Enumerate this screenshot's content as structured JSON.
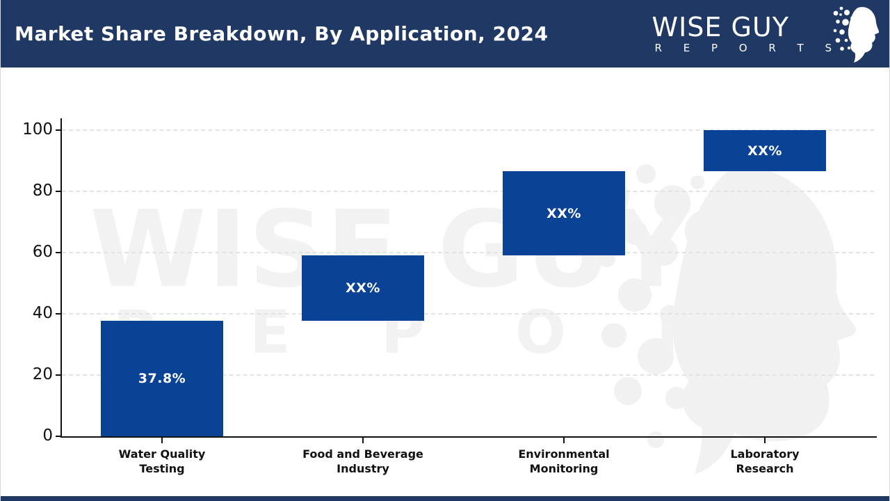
{
  "header": {
    "title": "Market Share Breakdown, By Application, 2024",
    "bg_color": "#203864",
    "logo": {
      "line1": "WISE GUY",
      "line2": "R E P O R T S"
    }
  },
  "watermark": {
    "line1": "WISE GUY",
    "line2": "R E P O R T S",
    "color": "#f2f2f2"
  },
  "chart_data": {
    "type": "bar",
    "subtype": "waterfall",
    "title": "Market Share Breakdown, By Application, 2024",
    "categories": [
      "Water Quality Testing",
      "Food and Beverage Industry",
      "Environmental Monitoring",
      "Laboratory Research"
    ],
    "segments": [
      {
        "category_lines": [
          "Water Quality",
          "Testing"
        ],
        "start": 0,
        "end": 37.8,
        "label": "37.8%"
      },
      {
        "category_lines": [
          "Food and Beverage",
          "Industry"
        ],
        "start": 37.8,
        "end": 59.1,
        "label": "XX%"
      },
      {
        "category_lines": [
          "Environmental",
          "Monitoring"
        ],
        "start": 59.1,
        "end": 86.5,
        "label": "XX%"
      },
      {
        "category_lines": [
          "Laboratory",
          "Research"
        ],
        "start": 86.5,
        "end": 100,
        "label": "XX%"
      }
    ],
    "yticks": [
      0,
      20,
      40,
      60,
      80,
      100
    ],
    "ylim": [
      0,
      100
    ],
    "xlabel": "",
    "ylabel": "",
    "grid": "horizontal-dashed",
    "legend": "none",
    "bar_color": "#0a4296",
    "bar_label_color": "#ffffff",
    "axis_color": "#111111",
    "grid_color": "#e3e3e3"
  },
  "colors": {
    "header_bg": "#203864",
    "bottom_strip": "#203864"
  }
}
